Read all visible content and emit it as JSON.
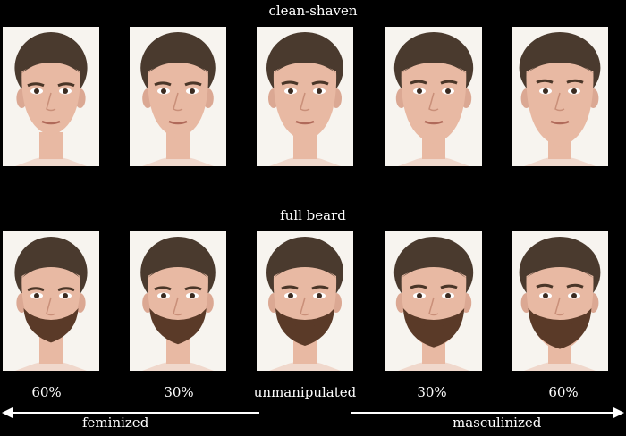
{
  "rows": [
    {
      "label": "clean-shaven",
      "beard": false
    },
    {
      "label": "full beard",
      "beard": true
    }
  ],
  "columns": [
    {
      "level": "60%",
      "masculinity": -0.6
    },
    {
      "level": "30%",
      "masculinity": -0.3
    },
    {
      "level": "unmanipulated",
      "masculinity": 0
    },
    {
      "level": "30%",
      "masculinity": 0.3
    },
    {
      "level": "60%",
      "masculinity": 0.6
    }
  ],
  "arrows": {
    "left_label": "feminized",
    "right_label": "masculinized"
  },
  "colors": {
    "background": "#000000",
    "photo_bg": "#f7f4ef",
    "skin": "#e8b9a3",
    "hair": "#4a3a2e",
    "beard": "#5a3a28",
    "text": "#ffffff"
  }
}
